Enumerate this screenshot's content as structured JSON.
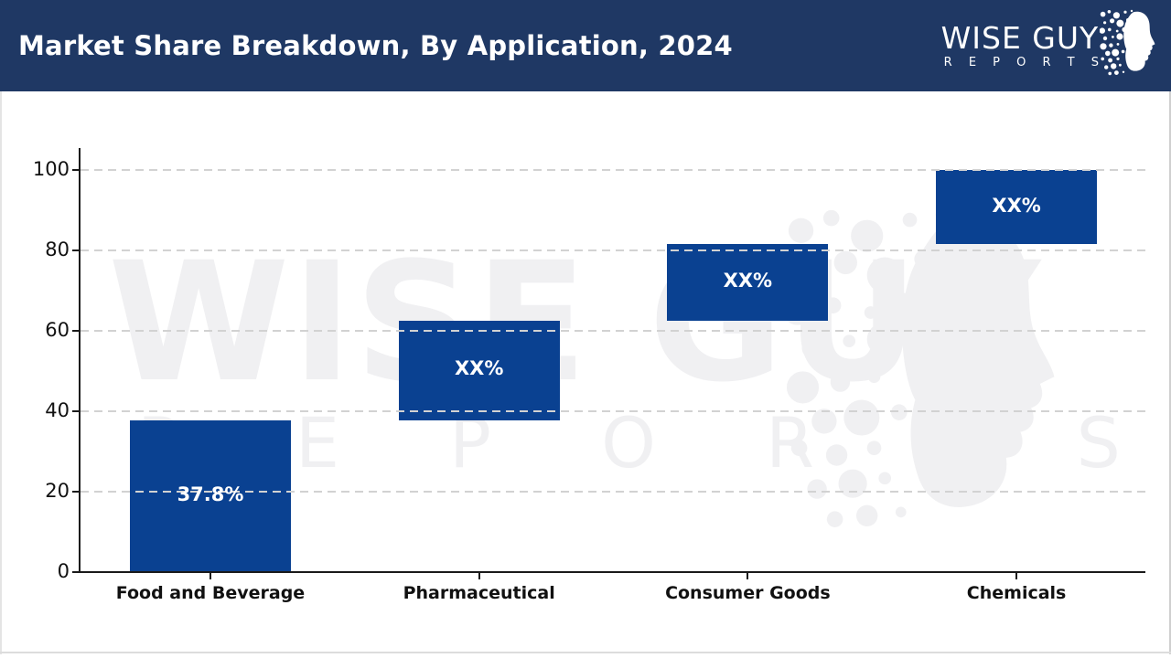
{
  "header": {
    "title": "Market Share Breakdown, By Application, 2024",
    "bg_color": "#1F3864",
    "logo": {
      "brand": "WISE GUY",
      "sub": "R E P O R T S"
    }
  },
  "watermark": {
    "brand": "WISE GUY",
    "sub": "R E P O R T S",
    "color": "#F0F0F2"
  },
  "chart_data": {
    "type": "bar",
    "subtype": "floating-waterfall",
    "title": "Market Share Breakdown, By Application, 2024",
    "xlabel": "",
    "ylabel": "",
    "categories": [
      "Food and Beverage",
      "Pharmaceutical",
      "Consumer Goods",
      "Chemicals"
    ],
    "segments": [
      {
        "category": "Food and Beverage",
        "start": 0,
        "end": 37.8,
        "label": "37.8%"
      },
      {
        "category": "Pharmaceutical",
        "start": 37.8,
        "end": 62.5,
        "label": "XX%"
      },
      {
        "category": "Consumer Goods",
        "start": 62.5,
        "end": 81.5,
        "label": "XX%"
      },
      {
        "category": "Chemicals",
        "start": 81.5,
        "end": 100,
        "label": "XX%"
      }
    ],
    "yticks": [
      0,
      20,
      40,
      60,
      80,
      100
    ],
    "ylim": [
      0,
      105
    ],
    "grid": "horizontal dashed, drawn over bars",
    "legend": "none",
    "bar_color": "#0A4191",
    "bar_label_color": "#FFFFFF",
    "grid_color": "#D2D2D2",
    "axis_color": "#1A1A1A",
    "tick_label_color": "#111111"
  }
}
